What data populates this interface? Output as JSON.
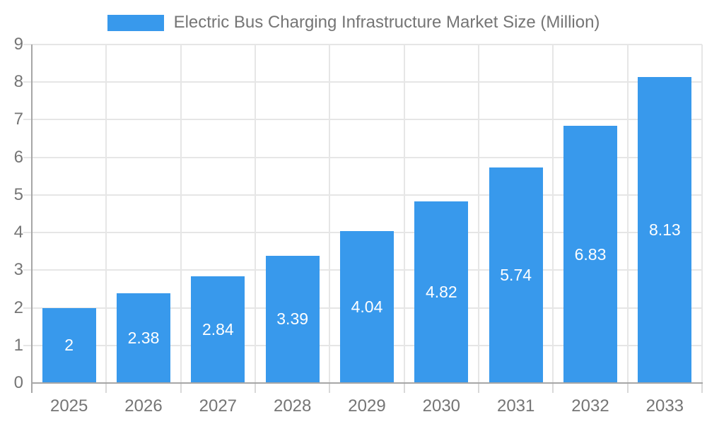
{
  "chart_data": {
    "type": "bar",
    "title": "Electric Bus Charging Infrastructure Market Size (Million)",
    "categories": [
      "2025",
      "2026",
      "2027",
      "2028",
      "2029",
      "2030",
      "2031",
      "2032",
      "2033"
    ],
    "values": [
      2,
      2.38,
      2.84,
      3.39,
      4.04,
      4.82,
      5.74,
      6.83,
      8.13
    ],
    "bar_labels": [
      "2",
      "2.38",
      "2.84",
      "3.39",
      "4.04",
      "4.82",
      "5.74",
      "6.83",
      "8.13"
    ],
    "xlabel": "",
    "ylabel": "",
    "ylim": [
      0,
      9
    ],
    "yticks": [
      "0",
      "1",
      "2",
      "3",
      "4",
      "5",
      "6",
      "7",
      "8",
      "9"
    ],
    "grid": "horizontal and vertical gridlines on",
    "legend_position": "top center",
    "value_label_position": "centered inside bar",
    "colors": {
      "bar": "#3899ec",
      "bar_value_text": "#ffffff",
      "axis_line": "#a6a6a6",
      "gridline": "#e6e6e6",
      "tick_mark": "#d9d9d9",
      "tick_text": "#757575",
      "legend_text": "#757575",
      "background": "#ffffff"
    }
  }
}
